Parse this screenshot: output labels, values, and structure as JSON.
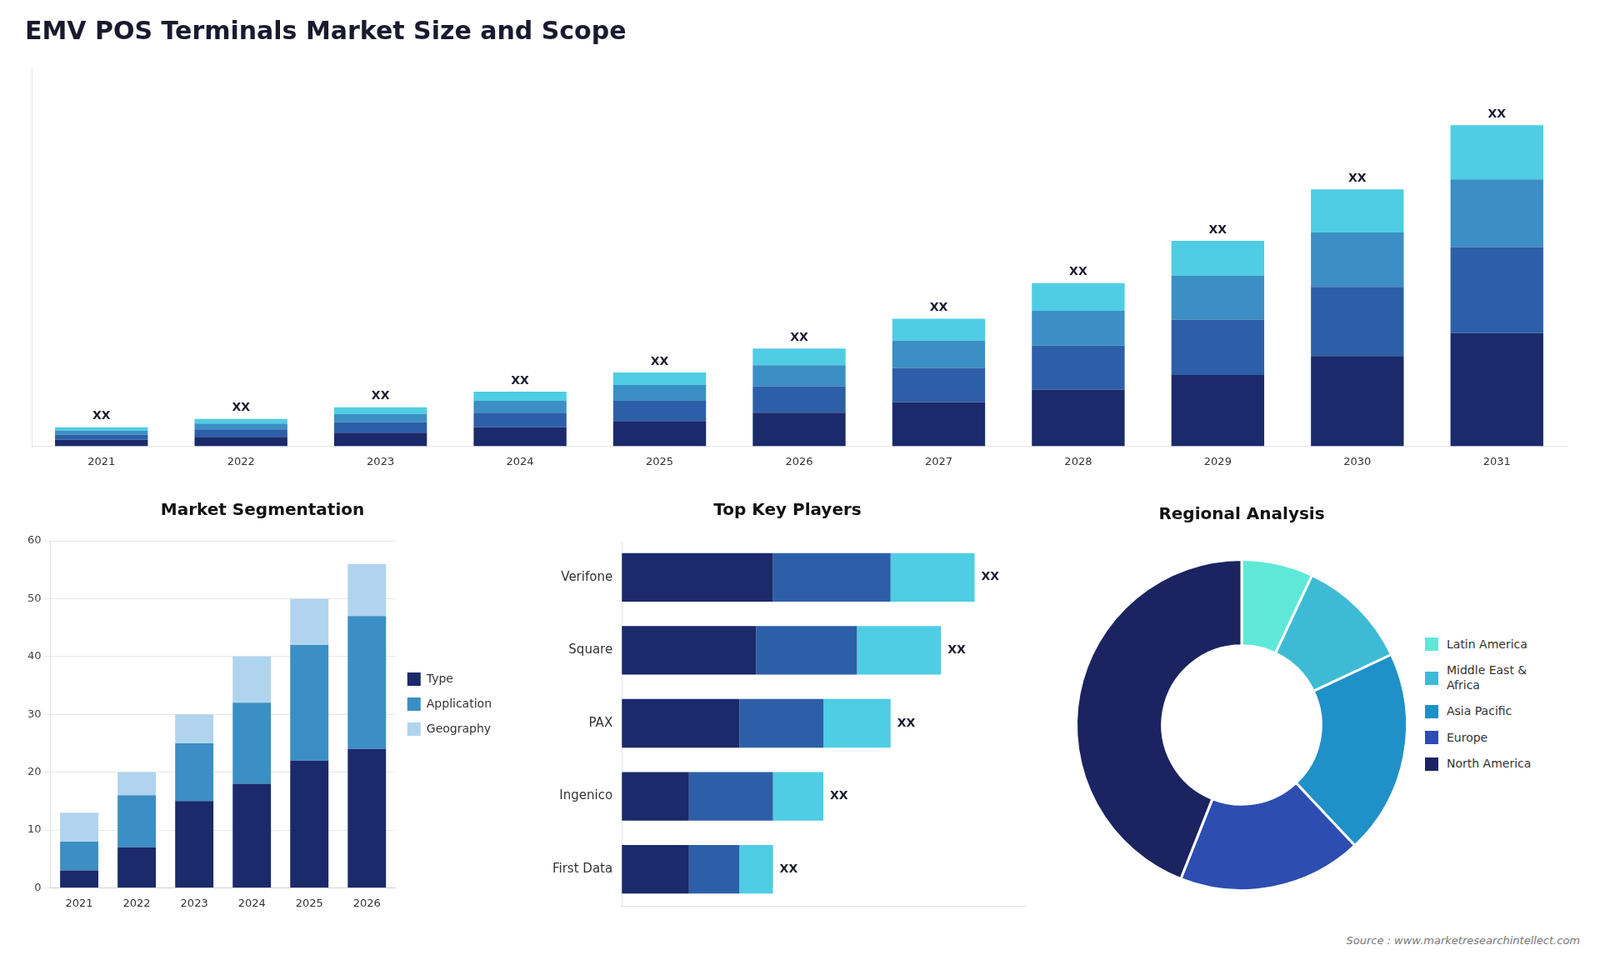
{
  "chart_data": [
    {
      "type": "bar",
      "stacked": true,
      "title": "EMV POS Terminals Market Size and Scope",
      "categories": [
        "2021",
        "2022",
        "2023",
        "2024",
        "2025",
        "2026",
        "2027",
        "2028",
        "2029",
        "2030",
        "2031"
      ],
      "series": [
        {
          "color": "#1b2a6b",
          "values": [
            1.5,
            2.2,
            3.2,
            4.5,
            6.0,
            8.0,
            10.5,
            13.5,
            17.0,
            21.5,
            27.0
          ]
        },
        {
          "color": "#2d5fa8",
          "values": [
            1.2,
            1.8,
            2.5,
            3.5,
            4.8,
            6.3,
            8.2,
            10.5,
            13.2,
            16.5,
            20.5
          ]
        },
        {
          "color": "#3b8fc4",
          "values": [
            1.0,
            1.4,
            2.0,
            2.8,
            3.8,
            5.0,
            6.5,
            8.3,
            10.5,
            13.0,
            16.2
          ]
        },
        {
          "color": "#4ecde4",
          "values": [
            0.8,
            1.1,
            1.6,
            2.2,
            3.0,
            4.0,
            5.2,
            6.6,
            8.3,
            10.3,
            12.9
          ]
        }
      ],
      "ylim": [
        0,
        90.388
      ],
      "tick_labels": "x",
      "grid": false,
      "data_labels": true,
      "value_labels": [
        "XX",
        "XX",
        "XX",
        "XX",
        "XX",
        "XX",
        "XX",
        "XX",
        "XX",
        "XX",
        "XX"
      ]
    },
    {
      "type": "bar",
      "stacked": true,
      "title": "Market Segmentation",
      "categories": [
        "2021",
        "2022",
        "2023",
        "2024",
        "2025",
        "2026"
      ],
      "series": [
        {
          "name": "Type",
          "color": "#1b2a6b",
          "values": [
            3,
            7,
            15,
            18,
            22,
            24
          ]
        },
        {
          "name": "Application",
          "color": "#3b8fc4",
          "values": [
            5,
            9,
            10,
            14,
            20,
            23
          ]
        },
        {
          "name": "Geography",
          "color": "#b0d4ee",
          "values": [
            5,
            4,
            5,
            8,
            8,
            9
          ]
        }
      ],
      "ylim": [
        0,
        60
      ],
      "yticks": [
        0,
        10,
        20,
        30,
        40,
        50,
        60
      ],
      "grid": true,
      "legend": "right"
    },
    {
      "type": "bar",
      "stacked": true,
      "orientation": "horizontal",
      "title": "Top Key Players",
      "categories": [
        "Verifone",
        "Square",
        "PAX",
        "Ingenico",
        "First Data"
      ],
      "series": [
        {
          "color": "#1b2a6b",
          "values": [
            9,
            8,
            7,
            4,
            4
          ]
        },
        {
          "color": "#2d5fa8",
          "values": [
            7,
            6,
            5,
            5,
            3
          ]
        },
        {
          "color": "#4ecde4",
          "values": [
            5,
            5,
            4,
            3,
            2
          ]
        }
      ],
      "xlim": [
        0,
        24
      ],
      "tick_labels": "y",
      "grid": false,
      "data_labels": true,
      "value_labels": [
        "XX",
        "XX",
        "XX",
        "XX",
        "XX"
      ]
    },
    {
      "type": "doughnut",
      "title": "Regional Analysis",
      "categories": [
        "Latin America",
        "Middle East &\nAfrica",
        "Asia Pacific",
        "Europe",
        "North America"
      ],
      "values": [
        7,
        11,
        20,
        18,
        44
      ],
      "colors": [
        "#5ee8d8",
        "#3dbbd4",
        "#2090c8",
        "#2d4db0",
        "#1b2460"
      ],
      "legend": "right",
      "annotations": [
        "Source : www.marketresearchintellect.com"
      ]
    }
  ]
}
